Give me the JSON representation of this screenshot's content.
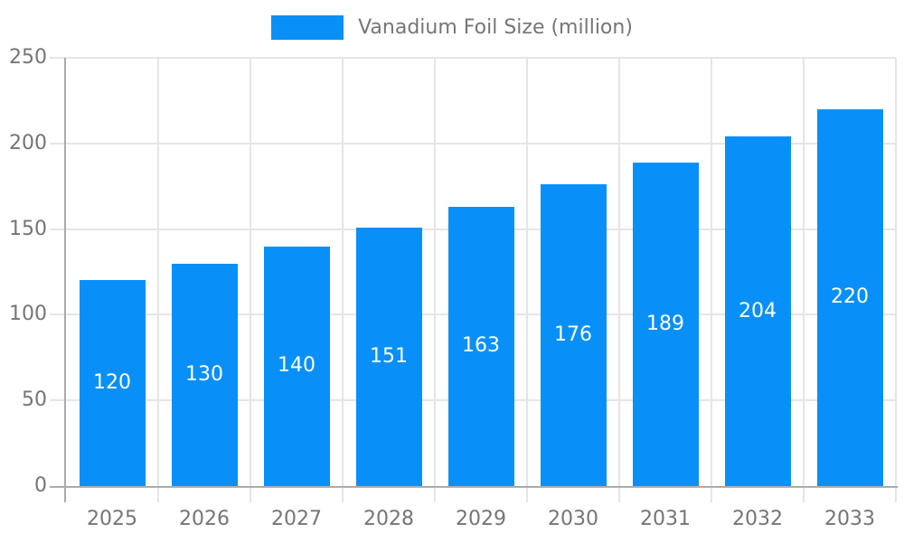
{
  "chart_data": {
    "type": "bar",
    "title": "Vanadium Foil Size (million)",
    "legend_label": "Vanadium Foil Size (million)",
    "legend_position": "top",
    "categories": [
      "2025",
      "2026",
      "2027",
      "2028",
      "2029",
      "2030",
      "2031",
      "2032",
      "2033"
    ],
    "values": [
      120,
      130,
      140,
      151,
      163,
      176,
      189,
      204,
      220
    ],
    "y_ticks": [
      0,
      50,
      100,
      150,
      200,
      250
    ],
    "ylim": [
      0,
      250
    ],
    "xlabel": "",
    "ylabel": "",
    "grid": true,
    "bar_labels_inside": true,
    "colors": {
      "bar": "#0890f8",
      "bar_label": "#ffffff",
      "tick_label": "#757575",
      "grid_line": "#e5e5e5",
      "axis_line": "#ababab"
    }
  }
}
